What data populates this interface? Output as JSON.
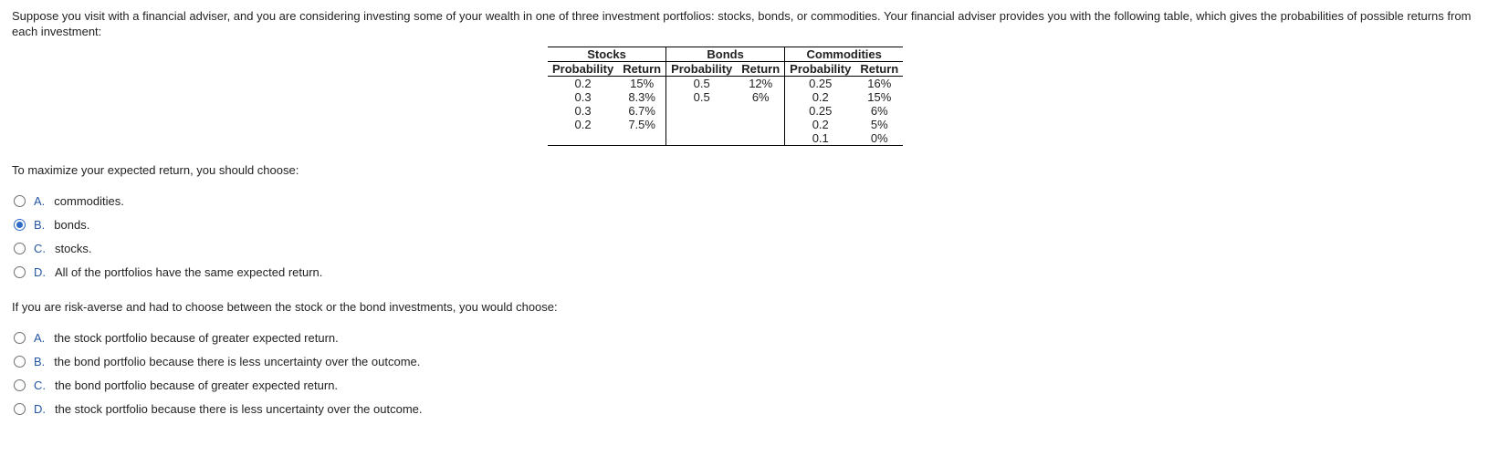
{
  "colors": {
    "text": "#222222",
    "letter_blue": "#2456a4",
    "accent": "#2e6bc4",
    "radio_border": "#6e6e6e",
    "table_border": "#000000"
  },
  "intro": "Suppose you visit with a financial adviser, and you are considering investing some of your wealth in one of three investment portfolios: stocks, bonds, or commodities. Your financial adviser provides you with the following table, which gives the probabilities of possible returns from each investment:",
  "table": {
    "groups": [
      {
        "name": "Stocks",
        "col_headers": [
          "Probability",
          "Return"
        ],
        "rows": [
          [
            "0.2",
            "15%"
          ],
          [
            "0.3",
            "8.3%"
          ],
          [
            "0.3",
            "6.7%"
          ],
          [
            "0.2",
            "7.5%"
          ]
        ]
      },
      {
        "name": "Bonds",
        "col_headers": [
          "Probability",
          "Return"
        ],
        "rows": [
          [
            "0.5",
            "12%"
          ],
          [
            "0.5",
            "6%"
          ]
        ]
      },
      {
        "name": "Commodities",
        "col_headers": [
          "Probability",
          "Return"
        ],
        "rows": [
          [
            "0.25",
            "16%"
          ],
          [
            "0.2",
            "15%"
          ],
          [
            "0.25",
            "6%"
          ],
          [
            "0.2",
            "5%"
          ],
          [
            "0.1",
            "0%"
          ]
        ]
      }
    ]
  },
  "q1": {
    "prompt": "To maximize your expected return, you should choose:",
    "options": [
      {
        "letter": "A.",
        "text": "commodities.",
        "selected": false
      },
      {
        "letter": "B.",
        "text": "bonds.",
        "selected": true
      },
      {
        "letter": "C.",
        "text": "stocks.",
        "selected": false
      },
      {
        "letter": "D.",
        "text": "All of the portfolios have the same expected return.",
        "selected": false
      }
    ]
  },
  "q2": {
    "prompt": "If you are risk-averse and had to choose between the stock or the bond investments, you would choose:",
    "options": [
      {
        "letter": "A.",
        "text": "the stock portfolio because of greater expected return.",
        "selected": false
      },
      {
        "letter": "B.",
        "text": "the bond portfolio because there is less uncertainty over the outcome.",
        "selected": false
      },
      {
        "letter": "C.",
        "text": "the bond portfolio because of greater expected return.",
        "selected": false
      },
      {
        "letter": "D.",
        "text": "the stock portfolio because there is less uncertainty over the outcome.",
        "selected": false
      }
    ]
  }
}
